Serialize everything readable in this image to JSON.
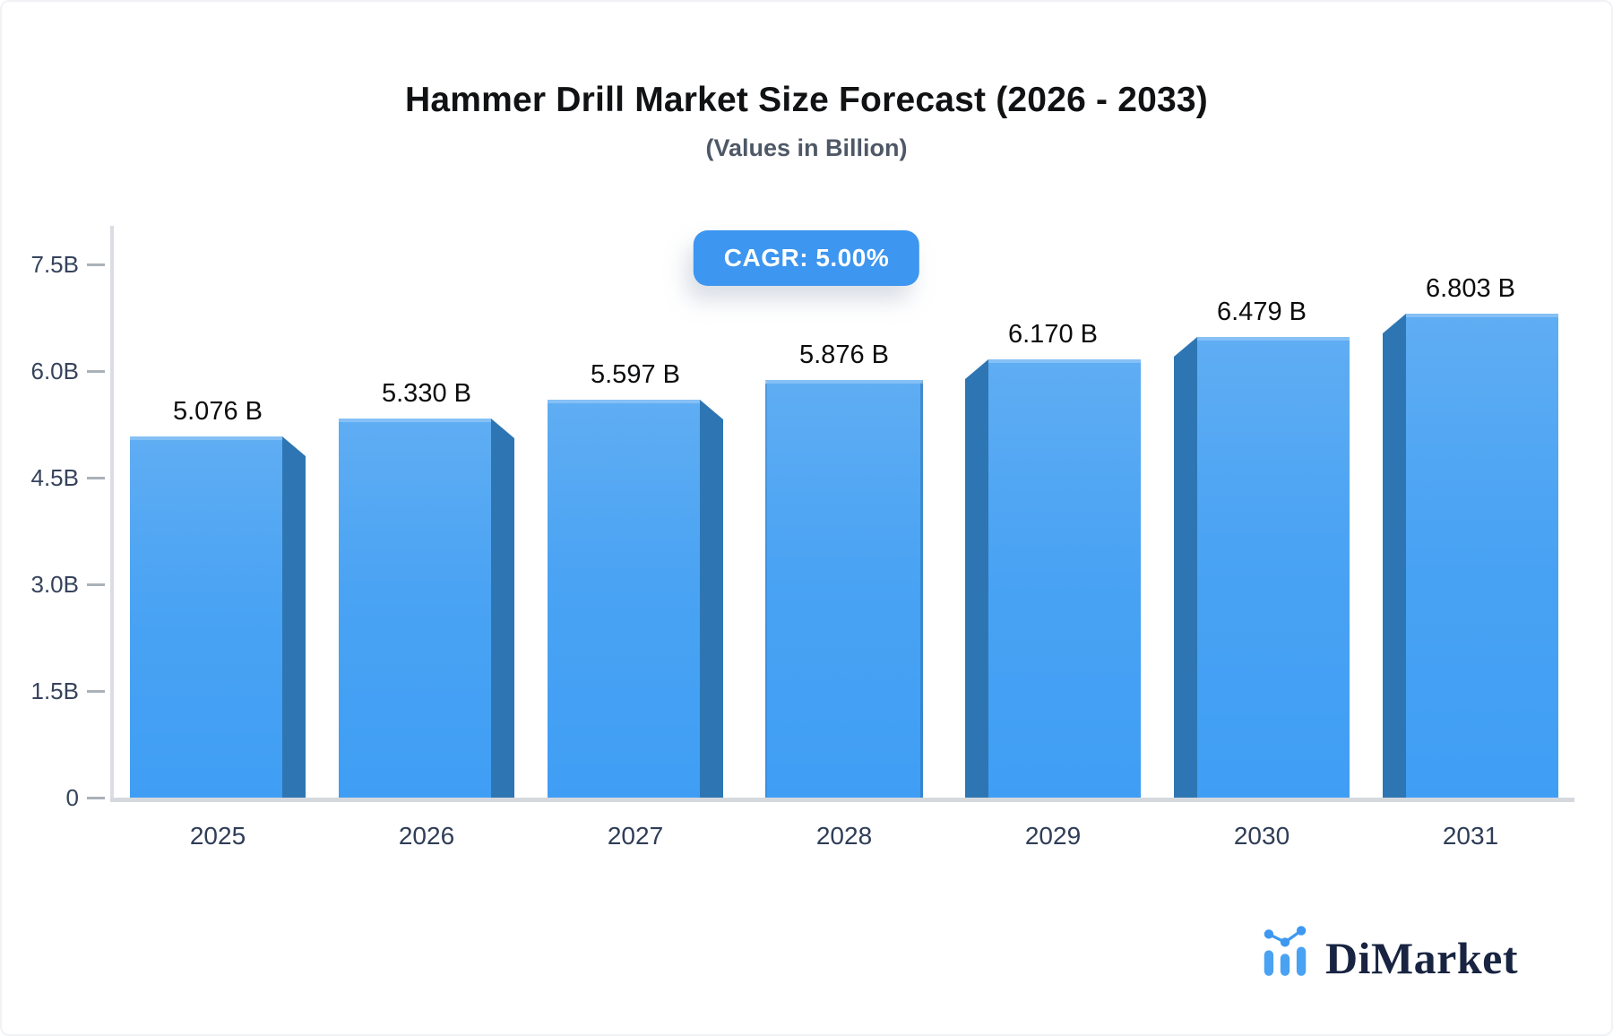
{
  "header": {
    "title": "Hammer Drill Market Size Forecast (2026 - 2033)",
    "subtitle": "(Values in Billion)",
    "cagr_label": "CAGR: 5.00%"
  },
  "branding": {
    "logo_text": "DiMarket",
    "logo_icon": "mini-bar-chart-with-trend-dots-icon"
  },
  "colors": {
    "bar_face_top": "#5fadf3",
    "bar_face_bottom": "#3f9ef4",
    "bar_side": "#2e76b3",
    "bar_top_edge": "#85c0f6",
    "badge_background": "#3d96ef",
    "badge_text": "#ffffff",
    "axis_line": "#d7dade",
    "tick_label": "#36435c",
    "value_label": "#0b0c0e",
    "title_text": "#101214",
    "subtitle_text": "#4e5866",
    "logo_navy": "#182441",
    "logo_blue": "#4aa2f2"
  },
  "chart_data": {
    "type": "bar",
    "title": "Hammer Drill Market Size Forecast (2026 - 2033)",
    "subtitle": "(Values in Billion)",
    "unit": "Billion",
    "cagr": "5.00%",
    "categories": [
      "2025",
      "2026",
      "2027",
      "2028",
      "2029",
      "2030",
      "2031"
    ],
    "values": [
      5.076,
      5.33,
      5.597,
      5.876,
      6.17,
      6.479,
      6.803
    ],
    "value_labels": [
      "5.076 B",
      "5.330 B",
      "5.597 B",
      "5.876 B",
      "6.170 B",
      "6.479 B",
      "6.803 B"
    ],
    "ylim": [
      0,
      7.5
    ],
    "yticks": [
      {
        "v": 0,
        "label": "0"
      },
      {
        "v": 1.5,
        "label": "1.5B"
      },
      {
        "v": 3.0,
        "label": "3.0B"
      },
      {
        "v": 4.5,
        "label": "4.5B"
      },
      {
        "v": 6.0,
        "label": "6.0B"
      },
      {
        "v": 7.5,
        "label": "7.5B"
      }
    ],
    "grid": false,
    "legend": false,
    "style": "3d-perspective-toward-center"
  }
}
